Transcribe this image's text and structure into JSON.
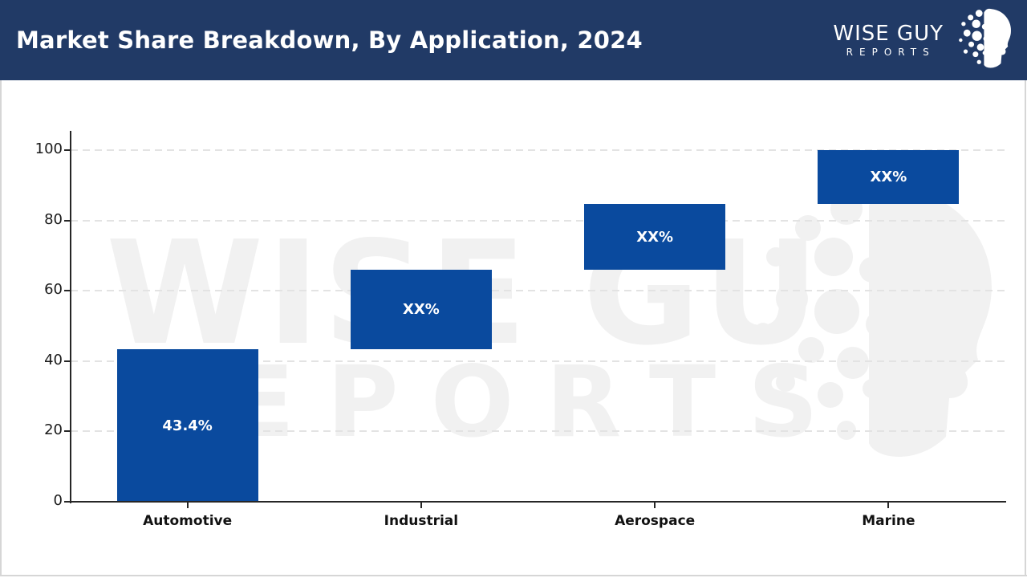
{
  "header": {
    "title": "Market Share Breakdown, By Application, 2024",
    "bg_color": "#213a66",
    "logo": {
      "line1": "WISE GUY",
      "line2": "REPORTS"
    }
  },
  "watermark": {
    "line1": "WISE GU",
    "line2": "REPORTS"
  },
  "chart_data": {
    "type": "bar",
    "subtype": "waterfall",
    "title": "Market Share Breakdown, By Application, 2024",
    "xlabel": "",
    "ylabel": "",
    "categories": [
      "Automotive",
      "Industrial",
      "Aerospace",
      "Marine"
    ],
    "series": [
      {
        "name": "Market Share",
        "segments": [
          {
            "category": "Automotive",
            "start": 0,
            "end": 43.4,
            "label": "43.4%"
          },
          {
            "category": "Industrial",
            "start": 43.4,
            "end": 66.0,
            "label": "XX%"
          },
          {
            "category": "Aerospace",
            "start": 66.0,
            "end": 84.7,
            "label": "XX%"
          },
          {
            "category": "Marine",
            "start": 84.7,
            "end": 100,
            "label": "XX%"
          }
        ]
      }
    ],
    "yticks": [
      0,
      20,
      40,
      60,
      80,
      100
    ],
    "ylim": [
      0,
      105.5
    ],
    "grid": "horizontal-dashed",
    "legend": "none",
    "bar_color": "#0a4a9e",
    "bar_label_color": "#ffffff"
  }
}
